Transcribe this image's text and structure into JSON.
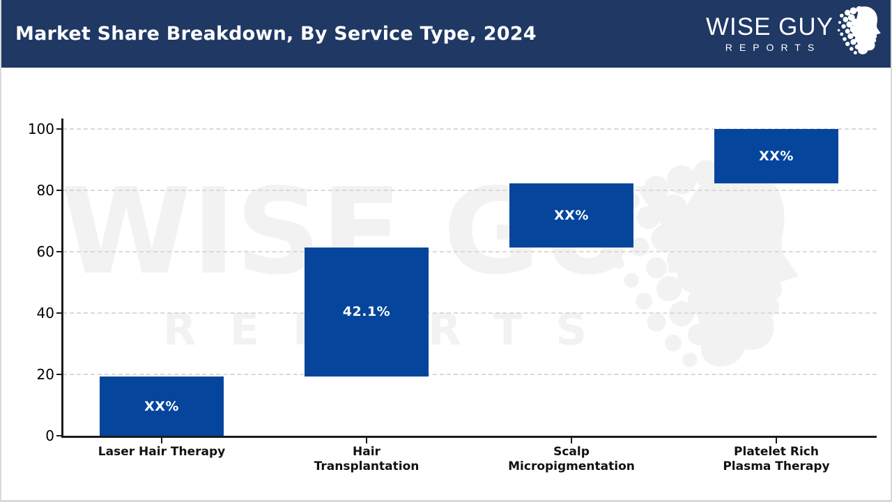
{
  "header": {
    "title": "Market Share Breakdown, By Service Type, 2024"
  },
  "logo": {
    "line1": "WISE GUY",
    "line2": "REPORTS"
  },
  "watermark": {
    "line1": "WISE GUY",
    "line2": "REPORTS"
  },
  "colors": {
    "header_background": "#1f3864",
    "bar_fill": "#05459b",
    "bar_label_text": "#ffffff",
    "gridline": "#d9d9d9",
    "axis": "#1a1a1a",
    "watermark": "#f2f2f2"
  },
  "chart_data": {
    "type": "bar",
    "subtype": "waterfall",
    "title": "Market Share Breakdown, By Service Type, 2024",
    "xlabel": "",
    "ylabel": "",
    "ylim": [
      0,
      100
    ],
    "y_ticks": [
      0,
      20,
      40,
      60,
      80,
      100
    ],
    "grid": "horizontal dashed",
    "legend": "none",
    "categories": [
      "Laser Hair Therapy",
      "Hair Transplantation",
      "Scalp Micropigmentation",
      "Platelet Rich Plasma Therapy"
    ],
    "bars": [
      {
        "category": "Laser Hair Therapy",
        "lines": [
          "Laser Hair Therapy"
        ],
        "base": 0,
        "top": 19.3,
        "value": 19.3,
        "label": "XX%"
      },
      {
        "category": "Hair Transplantation",
        "lines": [
          "Hair",
          "Transplantation"
        ],
        "base": 19.3,
        "top": 61.4,
        "value": 42.1,
        "label": "42.1%"
      },
      {
        "category": "Scalp Micropigmentation",
        "lines": [
          "Scalp",
          "Micropigmentation"
        ],
        "base": 61.4,
        "top": 82.2,
        "value": 20.8,
        "label": "XX%"
      },
      {
        "category": "Platelet Rich Plasma Therapy",
        "lines": [
          "Platelet Rich",
          "Plasma Therapy"
        ],
        "base": 82.2,
        "top": 100,
        "value": 17.8,
        "label": "XX%"
      }
    ]
  }
}
